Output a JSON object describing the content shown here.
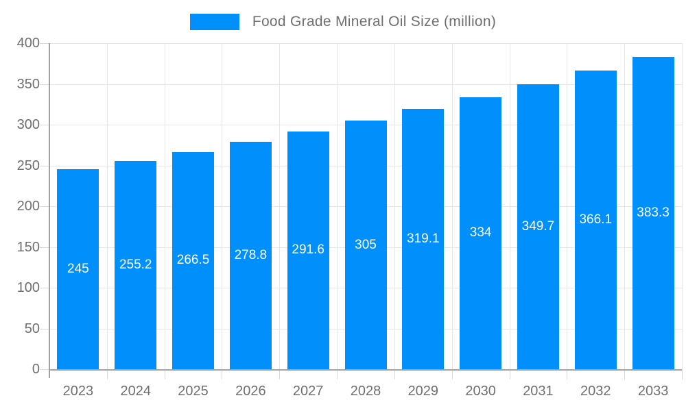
{
  "chart_data": {
    "type": "bar",
    "title": "Food Grade Mineral Oil Size (million)",
    "legend": {
      "label": "Food Grade Mineral Oil Size (million)",
      "position": "top"
    },
    "categories": [
      "2023",
      "2024",
      "2025",
      "2026",
      "2027",
      "2028",
      "2029",
      "2030",
      "2031",
      "2032",
      "2033"
    ],
    "values": [
      245,
      255.2,
      266.5,
      278.8,
      291.6,
      305,
      319.1,
      334,
      349.7,
      366.1,
      383.3
    ],
    "value_labels": [
      "245",
      "255.2",
      "266.5",
      "278.8",
      "291.6",
      "305",
      "319.1",
      "334",
      "349.7",
      "366.1",
      "383.3"
    ],
    "xlabel": "",
    "ylabel": "",
    "ylim": [
      0,
      400
    ],
    "yticks": [
      0,
      50,
      100,
      150,
      200,
      250,
      300,
      350,
      400
    ],
    "grid": true,
    "colors": {
      "bar": "#008FFB",
      "grid": "#e6e6e6",
      "axis_line": "#a3a3a3",
      "tick": "#d9d9d9",
      "axis_label": "#6f6f6f",
      "value_label": "#ffffff",
      "background": "#ffffff"
    }
  }
}
